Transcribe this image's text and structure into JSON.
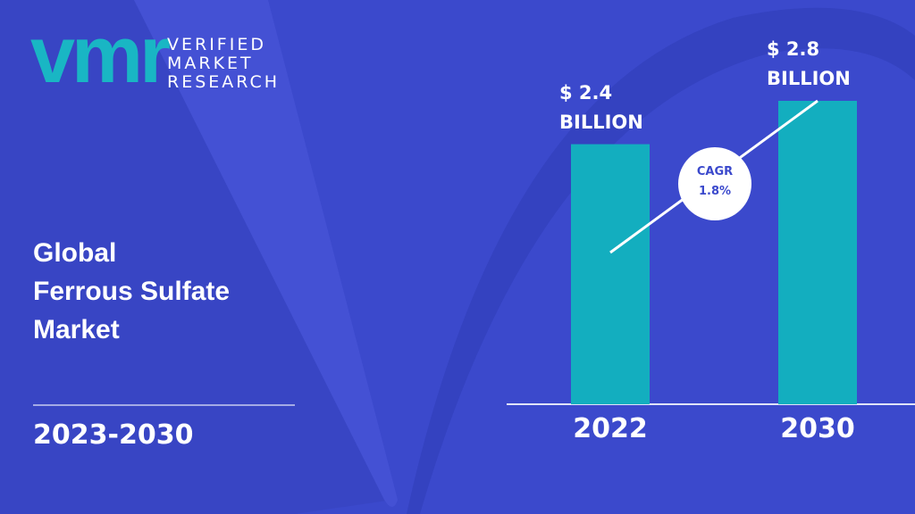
{
  "logo": {
    "mark": "vmr",
    "lines": [
      "VERIFIED",
      "MARKET",
      "RESEARCH"
    ]
  },
  "title": [
    "Global",
    "Ferrous Sulfate",
    "Market"
  ],
  "period": "2023-2030",
  "cagr": {
    "label": "CAGR",
    "value": "1.8%"
  },
  "chart_data": {
    "type": "bar",
    "categories": [
      "2022",
      "2030"
    ],
    "values": [
      2.4,
      2.8
    ],
    "value_labels": [
      "$ 2.4 BILLION",
      "$ 2.8 BILLION"
    ],
    "color": "#13aebf"
  }
}
